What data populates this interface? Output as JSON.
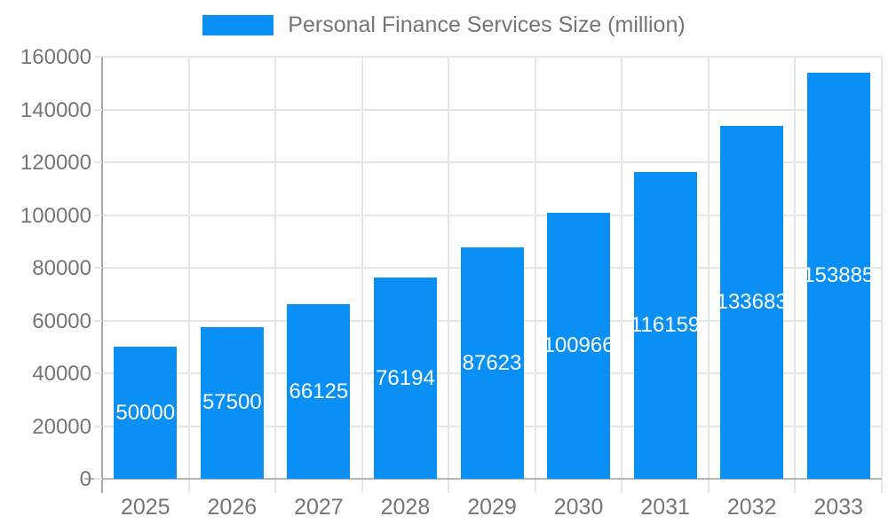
{
  "legend": {
    "label": "Personal Finance Services Size (million)"
  },
  "colors": {
    "bar": "#0a8ff5",
    "grid": "#e6e6e6",
    "y_axis_line": "#a8a8a8",
    "x_axis_line": "#b5b5b5",
    "axis_text": "#757575",
    "value_text": "#ffffff"
  },
  "chart_data": {
    "type": "bar",
    "title": "Personal Finance Services Size (million)",
    "categories": [
      "2025",
      "2026",
      "2027",
      "2028",
      "2029",
      "2030",
      "2031",
      "2032",
      "2033"
    ],
    "values": [
      50000,
      57500,
      66125,
      76194,
      87623,
      100966,
      116159,
      133683,
      153885
    ],
    "series_name": "Personal Finance Services Size (million)",
    "xlabel": "",
    "ylabel": "",
    "ylim": [
      0,
      160000
    ],
    "y_ticks": [
      0,
      20000,
      40000,
      60000,
      80000,
      100000,
      120000,
      140000,
      160000
    ],
    "grid": true,
    "legend_position": "top-center",
    "value_labels": "inside-center"
  }
}
